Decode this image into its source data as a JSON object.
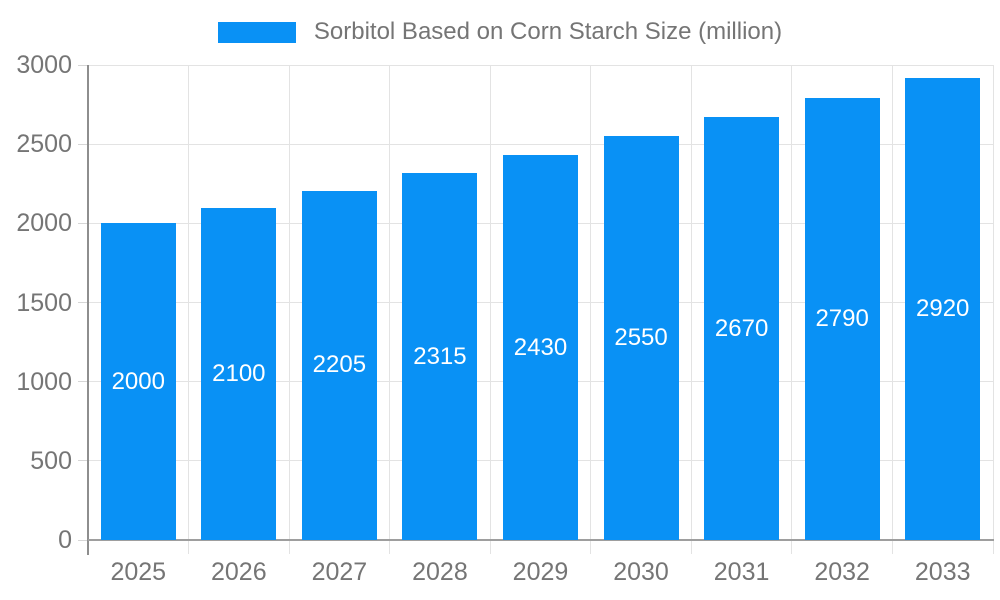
{
  "chart": {
    "legend_label": "Sorbitol Based on Corn Starch Size (million)"
  },
  "chart_data": {
    "type": "bar",
    "title": "Sorbitol Based on Corn Starch Size (million)",
    "series_name": "Sorbitol Based on Corn Starch Size (million)",
    "categories": [
      "2025",
      "2026",
      "2027",
      "2028",
      "2029",
      "2030",
      "2031",
      "2032",
      "2033"
    ],
    "values": [
      2000,
      2100,
      2205,
      2315,
      2430,
      2550,
      2670,
      2790,
      2920
    ],
    "xlabel": "",
    "ylabel": "",
    "ylim": [
      0,
      3000
    ],
    "yticks": [
      0,
      500,
      1000,
      1500,
      2000,
      2500,
      3000
    ],
    "grid": true,
    "legend_position": "top",
    "value_labels": "inside-center",
    "bar_color": "#0991F5",
    "value_label_color": "#FFFFFF",
    "axis_text_color": "#757575",
    "gridline_color": "#E3E3E3",
    "axis_line_color": "#9E9E9E",
    "background": "#FFFFFF"
  }
}
